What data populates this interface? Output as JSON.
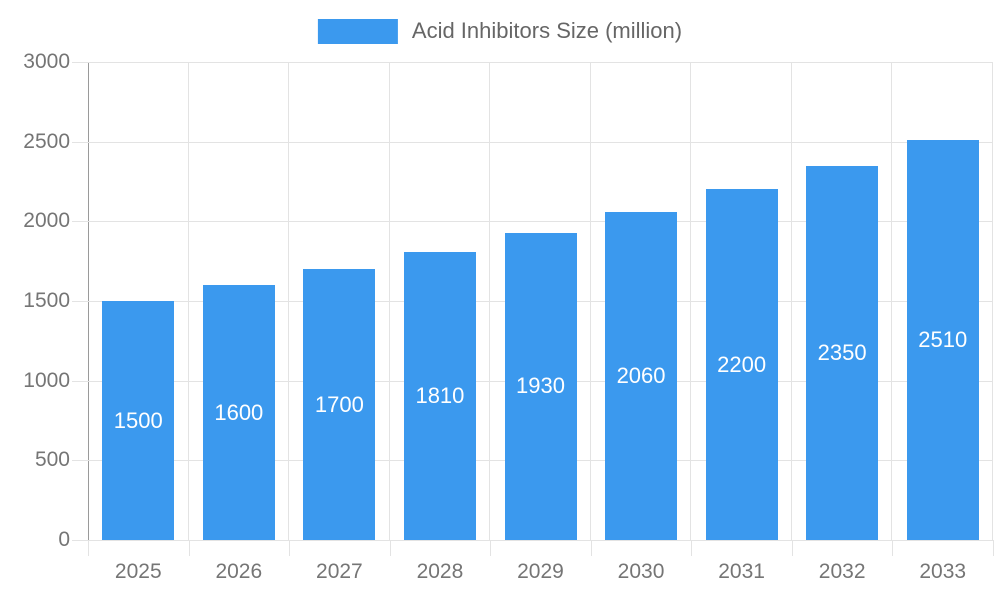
{
  "legend": {
    "label": "Acid Inhibitors Size (million)"
  },
  "chart_data": {
    "type": "bar",
    "title": "Acid Inhibitors Size (million)",
    "series": [
      {
        "name": "Acid Inhibitors Size (million)",
        "values": [
          1500,
          1600,
          1700,
          1810,
          1930,
          2060,
          2200,
          2350,
          2510
        ]
      }
    ],
    "categories": [
      "2025",
      "2026",
      "2027",
      "2028",
      "2029",
      "2030",
      "2031",
      "2032",
      "2033"
    ],
    "xlabel": "",
    "ylabel": "",
    "ylim": [
      0,
      3000
    ],
    "ytick_step": 500,
    "ytick_labels": [
      "0",
      "500",
      "1000",
      "1500",
      "2000",
      "2500",
      "3000"
    ],
    "grid": true,
    "legend_position": "top-center",
    "bar_value_labels_visible": true
  },
  "colors": {
    "bar": "#3B99EE",
    "grid": "#E3E3E3",
    "axis_line": "#9A9A9A",
    "tick_label": "#757575",
    "legend_text": "#666666",
    "bar_label_text": "#FFFFFF",
    "background": "#FFFFFF"
  }
}
